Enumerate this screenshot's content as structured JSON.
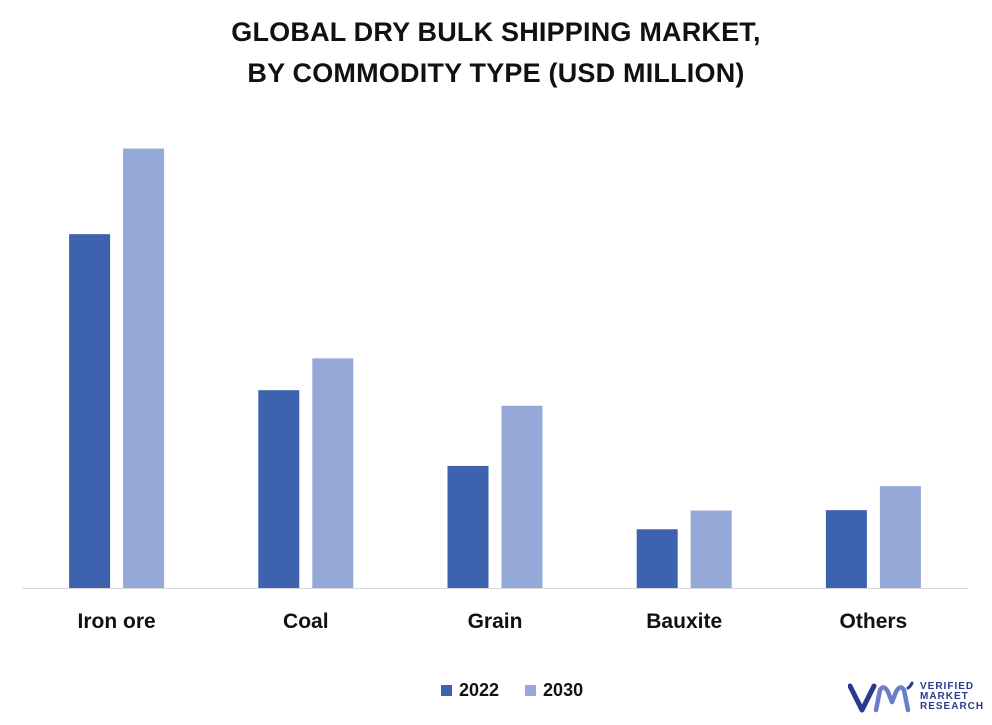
{
  "title_lines": [
    "GLOBAL DRY BULK SHIPPING MARKET,",
    "BY COMMODITY TYPE (USD MILLION)"
  ],
  "chart_data": {
    "type": "bar",
    "title": "GLOBAL DRY BULK SHIPPING MARKET, BY COMMODITY TYPE (USD MILLION)",
    "categories": [
      "Iron ore",
      "Coal",
      "Grain",
      "Bauxite",
      "Others"
    ],
    "series": [
      {
        "name": "2022",
        "color": "#3d63ae",
        "values": [
          100,
          55.9,
          34.5,
          16.6,
          22.0
        ]
      },
      {
        "name": "2030",
        "color": "#94a9d7",
        "values": [
          124.2,
          64.9,
          51.5,
          21.9,
          28.8
        ]
      }
    ],
    "ylim": [
      0,
      130
    ],
    "grid": false,
    "legend_position": "bottom",
    "axis_line_color": "#d9d9d9"
  },
  "logo": {
    "mark": "vmr-logo-mark",
    "lines": [
      "VERIFIED",
      "MARKET",
      "RESEARCH"
    ],
    "color": "#2b3a8c"
  }
}
